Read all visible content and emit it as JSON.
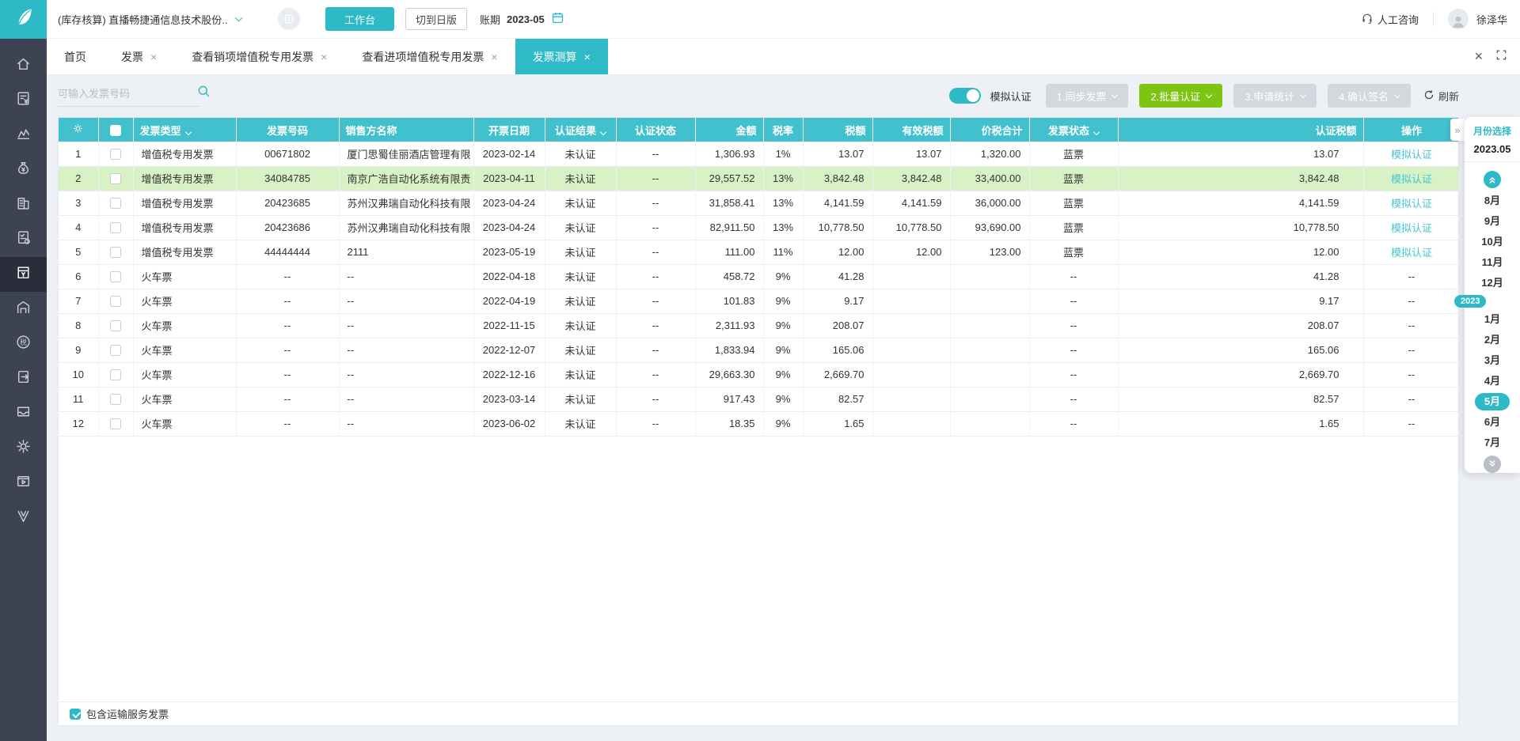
{
  "colors": {
    "accent": "#2dbac6",
    "header_teal": "#41c1cd",
    "green_button": "#7dc512",
    "row_highlight": "#d8f2c5",
    "link": "#46c4d6",
    "sidebar_bg": "#3e4354"
  },
  "topbar": {
    "account": "(库存核算) 直播畅捷通信息技术股份...",
    "workbench": "工作台",
    "switch_version": "切到日版",
    "period_label": "账期",
    "period_value": "2023-05",
    "support": "人工咨询",
    "username": "徐泽华"
  },
  "tabs": [
    {
      "label": "首页",
      "closable": false,
      "active": false
    },
    {
      "label": "发票",
      "closable": true,
      "active": false
    },
    {
      "label": "查看销项增值税专用发票",
      "closable": true,
      "active": false
    },
    {
      "label": "查看进项增值税专用发票",
      "closable": true,
      "active": false
    },
    {
      "label": "发票测算",
      "closable": true,
      "active": true
    }
  ],
  "tabbar_icons": {
    "close_all": "×"
  },
  "toolbar": {
    "search_placeholder": "可输入发票号码",
    "toggle_label": "模拟认证",
    "toggle_on": true,
    "buttons": [
      {
        "label": "1.同步发票",
        "style": "gray"
      },
      {
        "label": "2.批量认证",
        "style": "green"
      },
      {
        "label": "3.申请统计",
        "style": "gray"
      },
      {
        "label": "4.确认签名",
        "style": "gray"
      }
    ],
    "refresh": "刷新"
  },
  "table": {
    "columns": [
      {
        "key": "index",
        "label": "",
        "icon": "gear",
        "align": "center"
      },
      {
        "key": "check",
        "label": "",
        "icon": "checkbox",
        "align": "center"
      },
      {
        "key": "type",
        "label": "发票类型",
        "sort": true,
        "align": "left"
      },
      {
        "key": "number",
        "label": "发票号码",
        "align": "center"
      },
      {
        "key": "seller",
        "label": "销售方名称",
        "align": "left"
      },
      {
        "key": "date",
        "label": "开票日期",
        "align": "center"
      },
      {
        "key": "result",
        "label": "认证结果",
        "sort": true,
        "align": "center"
      },
      {
        "key": "status",
        "label": "认证状态",
        "align": "center"
      },
      {
        "key": "amount",
        "label": "金额",
        "align": "right"
      },
      {
        "key": "rate",
        "label": "税率",
        "align": "center"
      },
      {
        "key": "tax",
        "label": "税额",
        "align": "right"
      },
      {
        "key": "valid_tax",
        "label": "有效税额",
        "align": "right"
      },
      {
        "key": "total",
        "label": "价税合计",
        "align": "right"
      },
      {
        "key": "inv_status",
        "label": "发票状态",
        "sort": true,
        "align": "center"
      },
      {
        "key": "cert_tax",
        "label": "认证税额",
        "align": "right"
      },
      {
        "key": "action",
        "label": "操作",
        "align": "center"
      }
    ],
    "action_link": "模拟认证",
    "rows": [
      {
        "type": "增值税专用发票",
        "number": "00671802",
        "seller": "厦门思蜀佳丽酒店管理有限",
        "date": "2023-02-14",
        "result": "未认证",
        "status": "--",
        "amount": "1,306.93",
        "rate": "1%",
        "tax": "13.07",
        "valid_tax": "13.07",
        "total": "1,320.00",
        "inv_status": "蓝票",
        "cert_tax": "13.07",
        "action": "模拟认证",
        "highlight": false
      },
      {
        "type": "增值税专用发票",
        "number": "34084785",
        "seller": "南京广浩自动化系统有限责",
        "date": "2023-04-11",
        "result": "未认证",
        "status": "--",
        "amount": "29,557.52",
        "rate": "13%",
        "tax": "3,842.48",
        "valid_tax": "3,842.48",
        "total": "33,400.00",
        "inv_status": "蓝票",
        "cert_tax": "3,842.48",
        "action": "模拟认证",
        "highlight": true
      },
      {
        "type": "增值税专用发票",
        "number": "20423685",
        "seller": "苏州汉弗瑞自动化科技有限",
        "date": "2023-04-24",
        "result": "未认证",
        "status": "--",
        "amount": "31,858.41",
        "rate": "13%",
        "tax": "4,141.59",
        "valid_tax": "4,141.59",
        "total": "36,000.00",
        "inv_status": "蓝票",
        "cert_tax": "4,141.59",
        "action": "模拟认证",
        "highlight": false
      },
      {
        "type": "增值税专用发票",
        "number": "20423686",
        "seller": "苏州汉弗瑞自动化科技有限",
        "date": "2023-04-24",
        "result": "未认证",
        "status": "--",
        "amount": "82,911.50",
        "rate": "13%",
        "tax": "10,778.50",
        "valid_tax": "10,778.50",
        "total": "93,690.00",
        "inv_status": "蓝票",
        "cert_tax": "10,778.50",
        "action": "模拟认证",
        "highlight": false
      },
      {
        "type": "增值税专用发票",
        "number": "44444444",
        "seller": "2111",
        "date": "2023-05-19",
        "result": "未认证",
        "status": "--",
        "amount": "111.00",
        "rate": "11%",
        "tax": "12.00",
        "valid_tax": "12.00",
        "total": "123.00",
        "inv_status": "蓝票",
        "cert_tax": "12.00",
        "action": "模拟认证",
        "highlight": false
      },
      {
        "type": "火车票",
        "number": "--",
        "seller": "--",
        "date": "2022-04-18",
        "result": "未认证",
        "status": "--",
        "amount": "458.72",
        "rate": "9%",
        "tax": "41.28",
        "valid_tax": "",
        "total": "",
        "inv_status": "--",
        "cert_tax": "41.28",
        "action": "--",
        "highlight": false
      },
      {
        "type": "火车票",
        "number": "--",
        "seller": "--",
        "date": "2022-04-19",
        "result": "未认证",
        "status": "--",
        "amount": "101.83",
        "rate": "9%",
        "tax": "9.17",
        "valid_tax": "",
        "total": "",
        "inv_status": "--",
        "cert_tax": "9.17",
        "action": "--",
        "highlight": false
      },
      {
        "type": "火车票",
        "number": "--",
        "seller": "--",
        "date": "2022-11-15",
        "result": "未认证",
        "status": "--",
        "amount": "2,311.93",
        "rate": "9%",
        "tax": "208.07",
        "valid_tax": "",
        "total": "",
        "inv_status": "--",
        "cert_tax": "208.07",
        "action": "--",
        "highlight": false
      },
      {
        "type": "火车票",
        "number": "--",
        "seller": "--",
        "date": "2022-12-07",
        "result": "未认证",
        "status": "--",
        "amount": "1,833.94",
        "rate": "9%",
        "tax": "165.06",
        "valid_tax": "",
        "total": "",
        "inv_status": "--",
        "cert_tax": "165.06",
        "action": "--",
        "highlight": false
      },
      {
        "type": "火车票",
        "number": "--",
        "seller": "--",
        "date": "2022-12-16",
        "result": "未认证",
        "status": "--",
        "amount": "29,663.30",
        "rate": "9%",
        "tax": "2,669.70",
        "valid_tax": "",
        "total": "",
        "inv_status": "--",
        "cert_tax": "2,669.70",
        "action": "--",
        "highlight": false
      },
      {
        "type": "火车票",
        "number": "--",
        "seller": "--",
        "date": "2023-03-14",
        "result": "未认证",
        "status": "--",
        "amount": "917.43",
        "rate": "9%",
        "tax": "82.57",
        "valid_tax": "",
        "total": "",
        "inv_status": "--",
        "cert_tax": "82.57",
        "action": "--",
        "highlight": false
      },
      {
        "type": "火车票",
        "number": "--",
        "seller": "--",
        "date": "2023-06-02",
        "result": "未认证",
        "status": "--",
        "amount": "18.35",
        "rate": "9%",
        "tax": "1.65",
        "valid_tax": "",
        "total": "",
        "inv_status": "--",
        "cert_tax": "1.65",
        "action": "--",
        "highlight": false
      }
    ]
  },
  "month_panel": {
    "title": "月份选择",
    "current": "2023.05",
    "year_badge": "2023",
    "badge_before": "1月",
    "months": [
      "8月",
      "9月",
      "10月",
      "11月",
      "12月",
      "1月",
      "2月",
      "3月",
      "4月",
      "5月",
      "6月",
      "7月"
    ],
    "selected": "5月",
    "expand_glyph": "»"
  },
  "footer": {
    "transport_checkbox": "包含运输服务发票",
    "checked": true
  },
  "sidebar": {
    "items": [
      "home",
      "voucher",
      "analytics",
      "money-bag",
      "company",
      "report",
      "invoice-print",
      "warehouse",
      "tax",
      "document-transfer",
      "inbox",
      "settings",
      "video",
      "v-logo"
    ],
    "active": "invoice-print"
  }
}
